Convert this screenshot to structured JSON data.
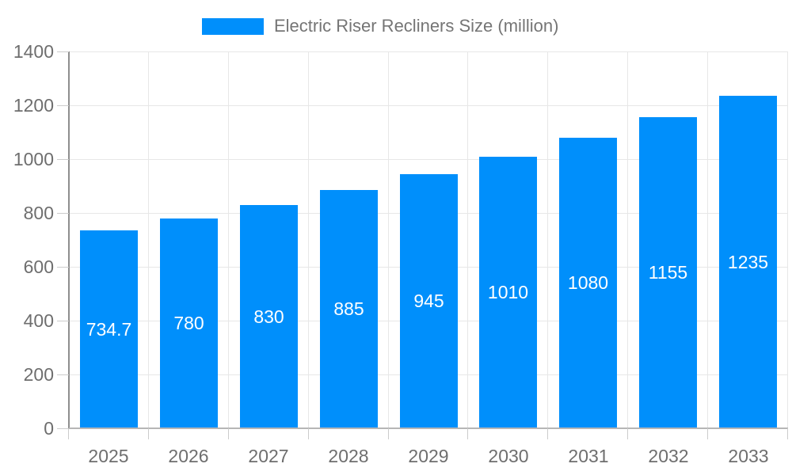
{
  "chart_data": {
    "type": "bar",
    "title": "Electric Riser Recliners Size (million)",
    "legend": {
      "label": "Electric Riser Recliners Size (million)",
      "position": "top"
    },
    "categories": [
      "2025",
      "2026",
      "2027",
      "2028",
      "2029",
      "2030",
      "2031",
      "2032",
      "2033"
    ],
    "series": [
      {
        "name": "Electric Riser Recliners Size (million)",
        "values": [
          734.7,
          780,
          830,
          885,
          945,
          1010,
          1080,
          1155,
          1235
        ]
      }
    ],
    "value_labels": [
      "734.7",
      "780",
      "830",
      "885",
      "945",
      "1010",
      "1080",
      "1155",
      "1235"
    ],
    "xlabel": "",
    "ylabel": "",
    "ylim": [
      0,
      1400
    ],
    "y_ticks": [
      0,
      200,
      400,
      600,
      800,
      1000,
      1200,
      1400
    ],
    "y_tick_labels": [
      "0",
      "200",
      "400",
      "600",
      "800",
      "1000",
      "1200",
      "1400"
    ],
    "grid": true,
    "colors": {
      "bar": "#008FFB",
      "bar_label": "#ffffff",
      "axis_text": "#6e6e6e",
      "legend_text": "#757575",
      "gridline": "#e7e7e7",
      "x_axis_line": "#b6b6b6",
      "y_axis_line": "#8e8e8e",
      "tick": "#cccccc",
      "background": "#ffffff"
    }
  }
}
